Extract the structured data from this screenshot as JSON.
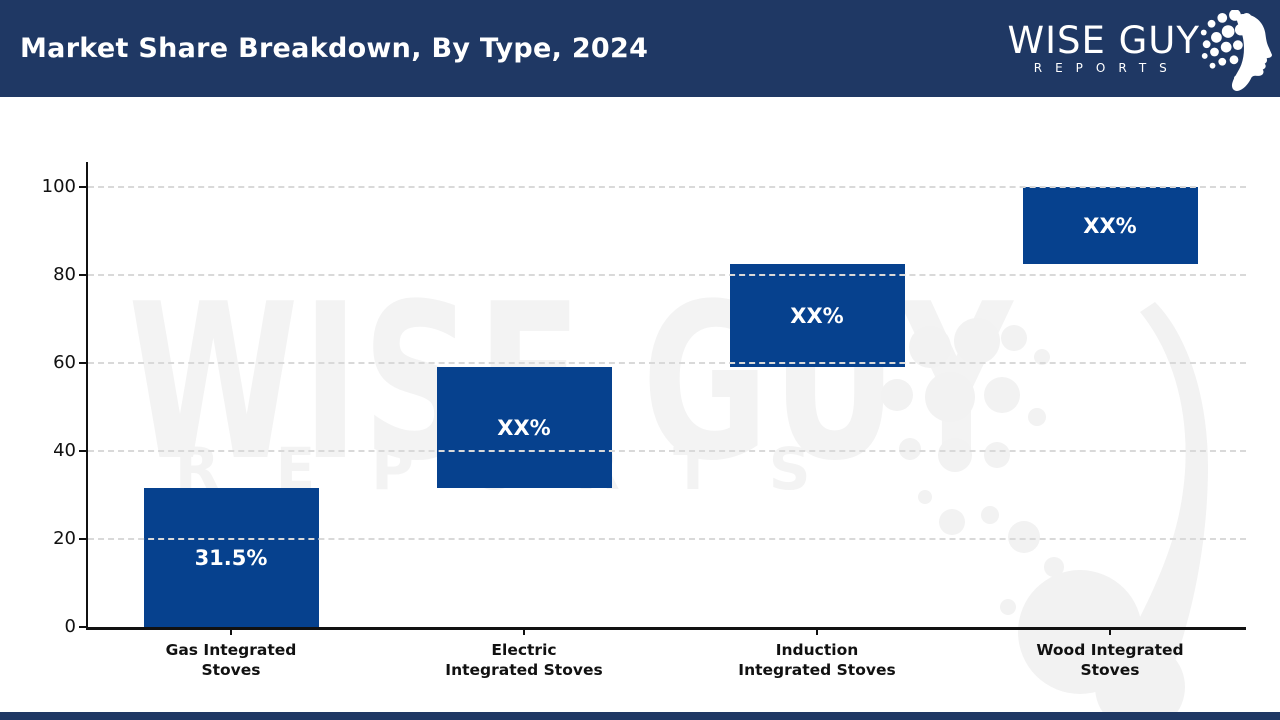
{
  "header": {
    "title": "Market Share Breakdown, By Type, 2024",
    "bg_color": "#1f3864",
    "logo": {
      "line1": "WISE GUY",
      "line2": "REPORTS"
    },
    "icons": {
      "logo_head": "face-profile-dots-icon"
    }
  },
  "watermark": {
    "line1": "WISE GUY",
    "line2": "REPORTS",
    "icon": "face-profile-dots-watermark-icon"
  },
  "chart_data": {
    "type": "bar",
    "subtype": "waterfall",
    "title": "Market Share Breakdown, By Type, 2024",
    "categories": [
      "Gas Integrated Stoves",
      "Electric Integrated Stoves",
      "Induction Integrated Stoves",
      "Wood Integrated Stoves"
    ],
    "segments": [
      {
        "name": "Gas Integrated Stoves",
        "lines": [
          "Gas Integrated",
          "Stoves"
        ],
        "start": 0,
        "end": 31.5,
        "value": 31.5,
        "label": "31.5%"
      },
      {
        "name": "Electric Integrated Stoves",
        "lines": [
          "Electric",
          "Integrated Stoves"
        ],
        "start": 31.5,
        "end": 59,
        "value": 27.5,
        "label": "XX%"
      },
      {
        "name": "Induction Integrated Stoves",
        "lines": [
          "Induction",
          "Integrated Stoves"
        ],
        "start": 59,
        "end": 82.5,
        "value": 23.5,
        "label": "XX%"
      },
      {
        "name": "Wood Integrated Stoves",
        "lines": [
          "Wood Integrated",
          "Stoves"
        ],
        "start": 82.5,
        "end": 100,
        "value": 17.5,
        "label": "XX%"
      }
    ],
    "y_ticks": [
      0,
      20,
      40,
      60,
      80,
      100
    ],
    "ylim": [
      0,
      106
    ],
    "xlabel": "",
    "ylabel": "",
    "grid": true,
    "gridline_style": "dashed",
    "legend": "none",
    "bar_color": "#06418e",
    "bar_label_color": "#ffffff",
    "gridline_color": "#d9d9d9",
    "axis_color": "#111111",
    "tick_label_color": "#111111"
  },
  "footer": {
    "bar_color": "#1f3864"
  }
}
